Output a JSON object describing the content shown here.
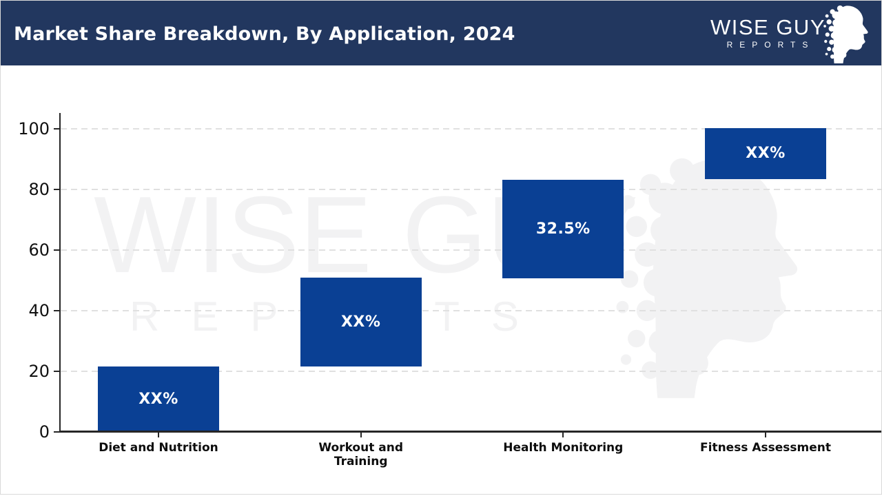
{
  "header": {
    "title": "Market Share Breakdown, By Application, 2024",
    "logo": {
      "name": "WISE GUY",
      "sub": "REPORTS"
    }
  },
  "watermark": {
    "name": "WISE GUY",
    "sub": "REPORTS"
  },
  "chart_data": {
    "type": "bar",
    "subtype": "floating-waterfall-segments",
    "title": "Market Share Breakdown, By Application, 2024",
    "categories": [
      "Diet and Nutrition",
      "Workout and Training",
      "Health Monitoring",
      "Fitness Assessment"
    ],
    "categories_display": [
      "Diet and Nutrition",
      "Workout and\nTraining",
      "Health Monitoring",
      "Fitness Assessment"
    ],
    "bars": [
      {
        "category": "Diet and Nutrition",
        "start": 0,
        "end": 21.6,
        "label": "XX%"
      },
      {
        "category": "Workout and Training",
        "start": 21.6,
        "end": 51.0,
        "label": "XX%"
      },
      {
        "category": "Health Monitoring",
        "start": 50.8,
        "end": 83.3,
        "label": "32.5%",
        "value": 32.5
      },
      {
        "category": "Fitness Assessment",
        "start": 83.5,
        "end": 100.3,
        "label": "XX%"
      }
    ],
    "xlabel": "",
    "ylabel": "",
    "ylim": [
      0,
      100
    ],
    "yticks": [
      0,
      20,
      40,
      60,
      80,
      100
    ],
    "grid": "horizontal-dashed",
    "legend": "none",
    "colors": {
      "bar": "#0a4094",
      "bar_label": "#ffffff",
      "header_bg": "#22375f",
      "axis": "#262626",
      "tick_label": "#111111",
      "gridline": "#e0e0e0",
      "watermark": "#f2f2f3",
      "background": "#ffffff"
    }
  }
}
